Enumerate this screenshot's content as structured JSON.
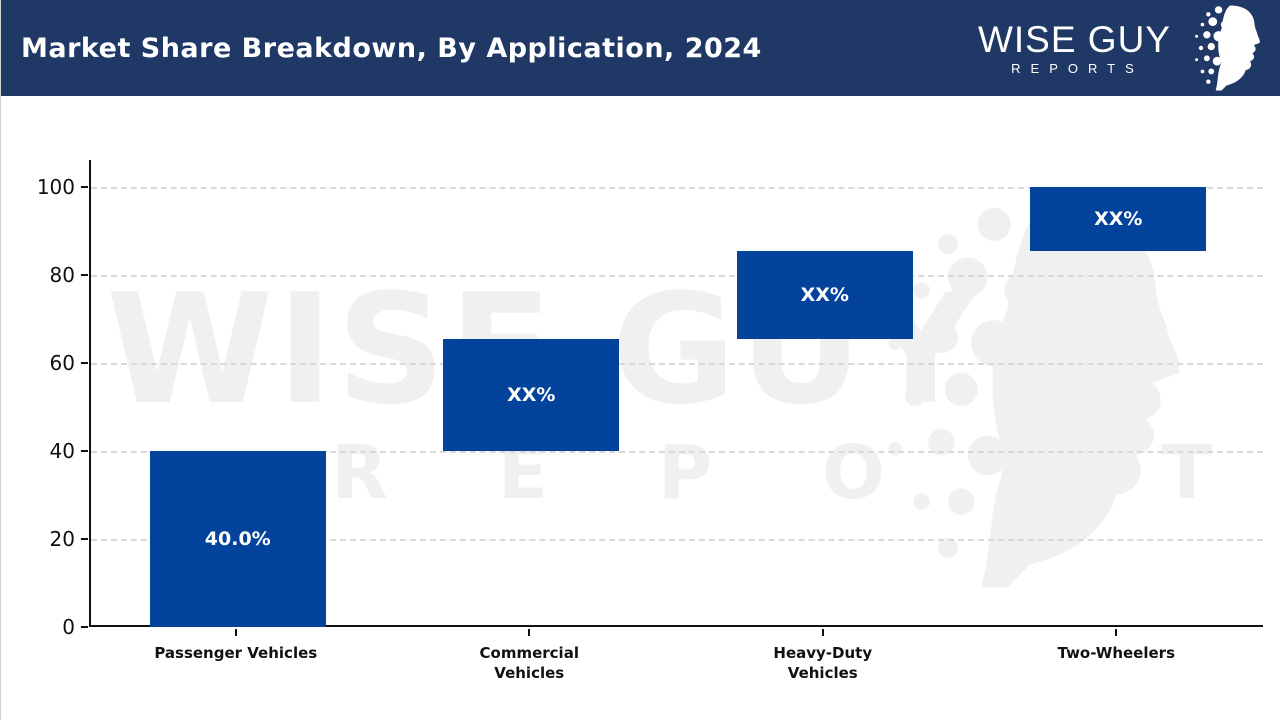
{
  "header": {
    "title": "Market Share Breakdown, By Application, 2024",
    "logo_line1": "WISE GUY",
    "logo_line2": "REPORTS"
  },
  "watermark": {
    "line1": "WISE GUY",
    "line2": "REPORTS"
  },
  "colors": {
    "header_bg": "#1f3866",
    "bar_color": "#04439b",
    "grid_color": "#d9d9d9",
    "axis_color": "#111111"
  },
  "chart_data": {
    "type": "bar",
    "subtype": "floating-waterfall",
    "title": "Market Share Breakdown, By Application, 2024",
    "categories": [
      "Passenger Vehicles",
      "Commercial Vehicles",
      "Heavy-Duty Vehicles",
      "Two-Wheelers"
    ],
    "category_lines": [
      [
        "Passenger Vehicles"
      ],
      [
        "Commercial",
        "Vehicles"
      ],
      [
        "Heavy-Duty",
        "Vehicles"
      ],
      [
        "Two-Wheelers"
      ]
    ],
    "bars": [
      {
        "category": "Passenger Vehicles",
        "start": 0,
        "end": 40,
        "label": "40.0%"
      },
      {
        "category": "Commercial Vehicles",
        "start": 40,
        "end": 65.5,
        "label": "XX%"
      },
      {
        "category": "Heavy-Duty Vehicles",
        "start": 65.5,
        "end": 85.5,
        "label": "XX%"
      },
      {
        "category": "Two-Wheelers",
        "start": 85.5,
        "end": 100,
        "label": "XX%"
      }
    ],
    "xlabel": "",
    "ylabel": "",
    "ylim": [
      0,
      100
    ],
    "yticks": [
      0,
      20,
      40,
      60,
      80,
      100
    ],
    "grid": "horizontal-dashed",
    "legend": "none",
    "bar_color": "#04439b",
    "bar_label_color": "#ffffff"
  }
}
